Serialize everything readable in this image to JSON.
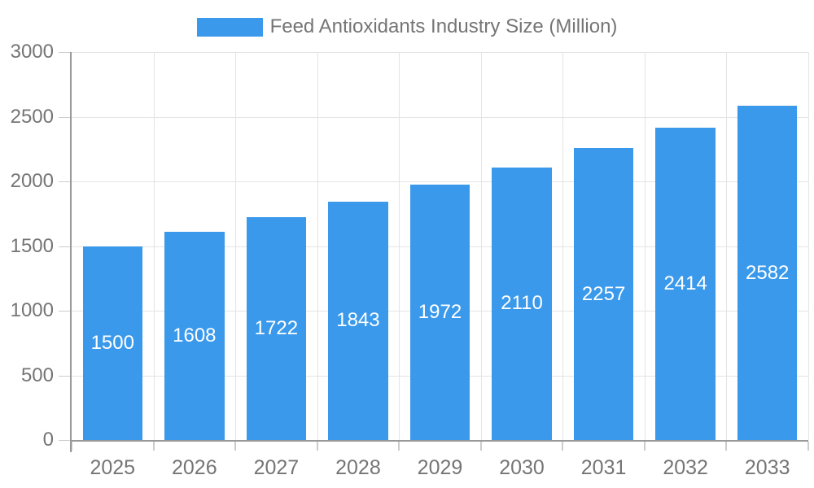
{
  "chart_data": {
    "type": "bar",
    "title": "Feed Antioxidants Industry Size (Million)",
    "legend": [
      "Feed Antioxidants Industry Size (Million)"
    ],
    "legend_position": "top",
    "categories": [
      "2025",
      "2026",
      "2027",
      "2028",
      "2029",
      "2030",
      "2031",
      "2032",
      "2033"
    ],
    "series": [
      {
        "name": "Feed Antioxidants Industry Size (Million)",
        "values": [
          1500,
          1608,
          1722,
          1843,
          1972,
          2110,
          2257,
          2414,
          2582
        ]
      }
    ],
    "value_labels_shown": true,
    "xlabel": "",
    "ylabel": "",
    "ylim": [
      0,
      3000
    ],
    "yticks": [
      0,
      500,
      1000,
      1500,
      2000,
      2500,
      3000
    ],
    "grid": true,
    "colors": {
      "bar": "#3B99EC",
      "bar_value_label": "#FFFFFF",
      "axis_line": "#999999",
      "gridline": "#E4E4E4",
      "tick": "#CCCCCC",
      "axis_text": "#757575"
    }
  }
}
